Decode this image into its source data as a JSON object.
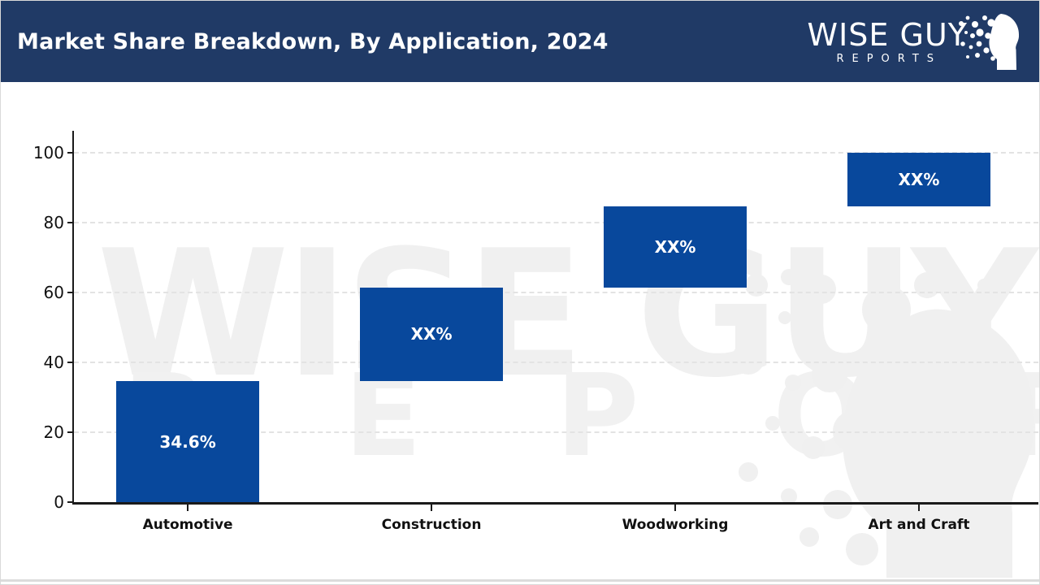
{
  "header": {
    "title": "Market Share Breakdown, By Application, 2024",
    "logo": {
      "line1": "WISE GUY",
      "line2": "REPORTS"
    }
  },
  "watermark": {
    "line1": "WISE GUY",
    "line2": "REPORTS"
  },
  "colors": {
    "header_bg": "#203a66",
    "bar": "#08489c",
    "bar_label": "#ffffff",
    "axis": "#1a1a1a",
    "gridline": "#e3e3e3",
    "watermark": "#f0f0f0"
  },
  "chart_data": {
    "type": "bar",
    "subtype": "waterfall",
    "title": "Market Share Breakdown, By Application, 2024",
    "categories": [
      "Automotive",
      "Construction",
      "Woodworking",
      "Art and Craft"
    ],
    "segments": [
      {
        "category": "Automotive",
        "start": 0,
        "end": 34.6,
        "label": "34.6%"
      },
      {
        "category": "Construction",
        "start": 34.6,
        "end": 61.5,
        "label": "XX%"
      },
      {
        "category": "Woodworking",
        "start": 61.5,
        "end": 84.6,
        "label": "XX%"
      },
      {
        "category": "Art and Craft",
        "start": 84.6,
        "end": 100,
        "label": "XX%"
      }
    ],
    "y_ticks": [
      0,
      20,
      40,
      60,
      80,
      100
    ],
    "ylim": [
      0,
      100
    ],
    "xlabel": "",
    "ylabel": "",
    "grid": "horizontal-dashed",
    "legend": "none",
    "bar_color": "#08489c",
    "label_color": "#ffffff"
  }
}
